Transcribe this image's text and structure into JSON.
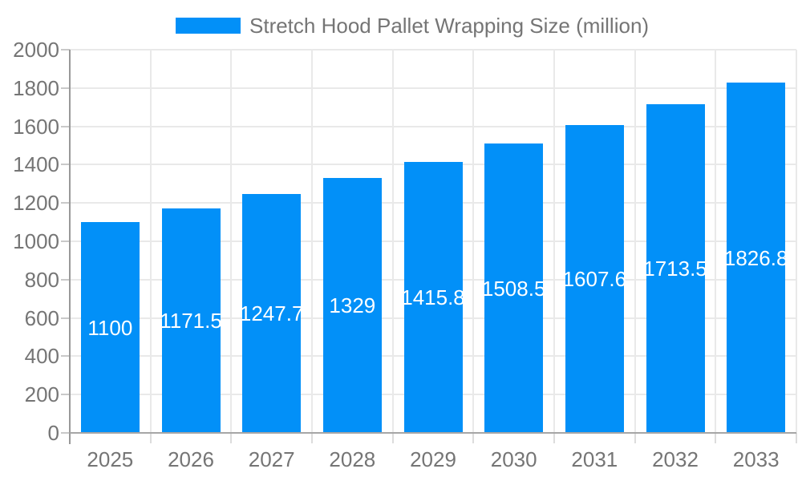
{
  "chart_data": {
    "type": "bar",
    "title": "Stretch Hood Pallet Wrapping Size (million)",
    "legend": {
      "position": "top",
      "entries": [
        "Stretch Hood Pallet Wrapping Size (million)"
      ]
    },
    "categories": [
      "2025",
      "2026",
      "2027",
      "2028",
      "2029",
      "2030",
      "2031",
      "2032",
      "2033"
    ],
    "series": [
      {
        "name": "Stretch Hood Pallet Wrapping Size (million)",
        "values": [
          1100,
          1171.5,
          1247.7,
          1329,
          1415.8,
          1508.5,
          1607.6,
          1713.5,
          1826.8
        ]
      }
    ],
    "data_labels": [
      "1100",
      "1171.5",
      "1247.7",
      "1329",
      "1415.8",
      "1508.5",
      "1607.6",
      "1713.5",
      "1826.8"
    ],
    "xlabel": "",
    "ylabel": "",
    "ylim": [
      0,
      2000
    ],
    "yticks": [
      0,
      200,
      400,
      600,
      800,
      1000,
      1200,
      1400,
      1600,
      1800,
      2000
    ],
    "grid": true,
    "colors": {
      "bar": "#0290f8",
      "axis_text": "#757575",
      "data_label_text": "#ffffff",
      "gridline": "#e9e9e9",
      "tick_mark": "#c9c9c9",
      "x_boundary_tick": "#dcdcdc",
      "axis_line": "#999999",
      "baseline": "#a6a6a6",
      "background": "#ffffff"
    }
  }
}
